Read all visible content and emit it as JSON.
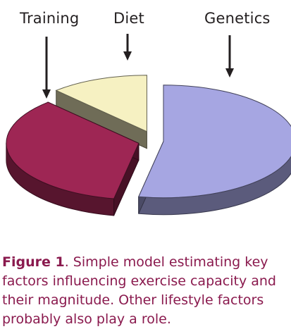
{
  "chart_data": {
    "type": "pie",
    "style": "3d-exploded",
    "categories": [
      "Training",
      "Diet",
      "Genetics"
    ],
    "values": [
      35,
      12,
      53
    ],
    "colors": {
      "Training": "#9e2654",
      "Diet": "#f6f1c2",
      "Genetics": "#a6a6e2"
    },
    "title": "",
    "legend": "labels-with-arrows-above"
  },
  "caption": {
    "label": "Figure 1",
    "text": ".  Simple model estimating key factors influencing exercise capacity and their magnitude.  Other lifestyle factors probably also play a role."
  }
}
